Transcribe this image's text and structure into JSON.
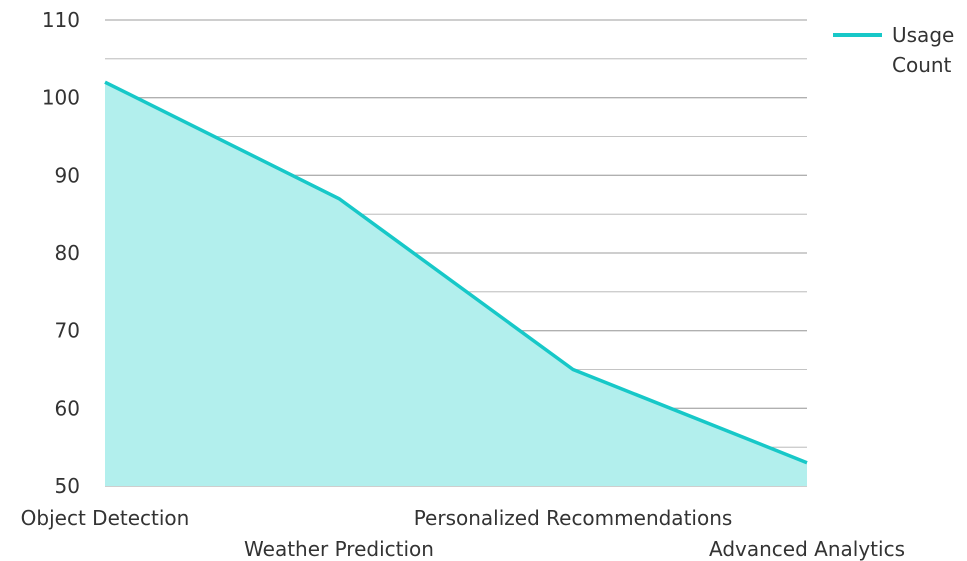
{
  "chart_data": {
    "type": "area",
    "categories": [
      "Object Detection",
      "Weather Prediction",
      "Personalized Recommendations",
      "Advanced Analytics"
    ],
    "series": [
      {
        "name": "Usage Count",
        "values": [
          102,
          87,
          65,
          53
        ]
      }
    ],
    "ylim": [
      50,
      110
    ],
    "yticks": [
      "50",
      "60",
      "70",
      "80",
      "90",
      "100",
      "110"
    ],
    "grid": true,
    "legend": {
      "position": "top-right",
      "lines": [
        "Usage",
        "Count"
      ]
    },
    "colors": {
      "line": "#17c8c8",
      "fill": "#b2efed",
      "grid": "#b0b0b0"
    }
  }
}
